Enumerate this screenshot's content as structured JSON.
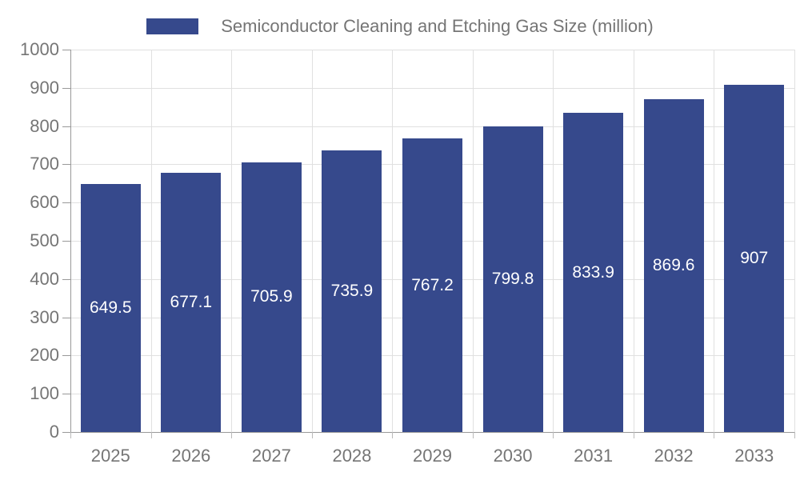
{
  "chart_data": {
    "type": "bar",
    "title": "Semiconductor Cleaning and Etching Gas Size (million)",
    "legend": {
      "position": "top-center",
      "label": "Semiconductor Cleaning and Etching Gas Size (million)"
    },
    "categories": [
      "2025",
      "2026",
      "2027",
      "2028",
      "2029",
      "2030",
      "2031",
      "2032",
      "2033"
    ],
    "series": [
      {
        "name": "Semiconductor Cleaning and Etching Gas Size (million)",
        "values": [
          649.5,
          677.1,
          705.9,
          735.9,
          767.2,
          799.8,
          833.9,
          869.6,
          907
        ]
      }
    ],
    "value_labels": [
      "649.5",
      "677.1",
      "705.9",
      "735.9",
      "767.2",
      "799.8",
      "833.9",
      "869.6",
      "907"
    ],
    "xlabel": "",
    "ylabel": "",
    "ylim": [
      0,
      1000
    ],
    "ytick_interval": 100,
    "yticks": [
      0,
      100,
      200,
      300,
      400,
      500,
      600,
      700,
      800,
      900,
      1000
    ],
    "grid": true,
    "colors": {
      "bar": "#36498c",
      "value_text": "#ffffff",
      "axis_text": "#757575",
      "legend_text": "#757575",
      "gridline": "#e0e0e0",
      "axis_line": "#999999",
      "x_tick": "#bbbbbb",
      "background": "#ffffff"
    }
  }
}
